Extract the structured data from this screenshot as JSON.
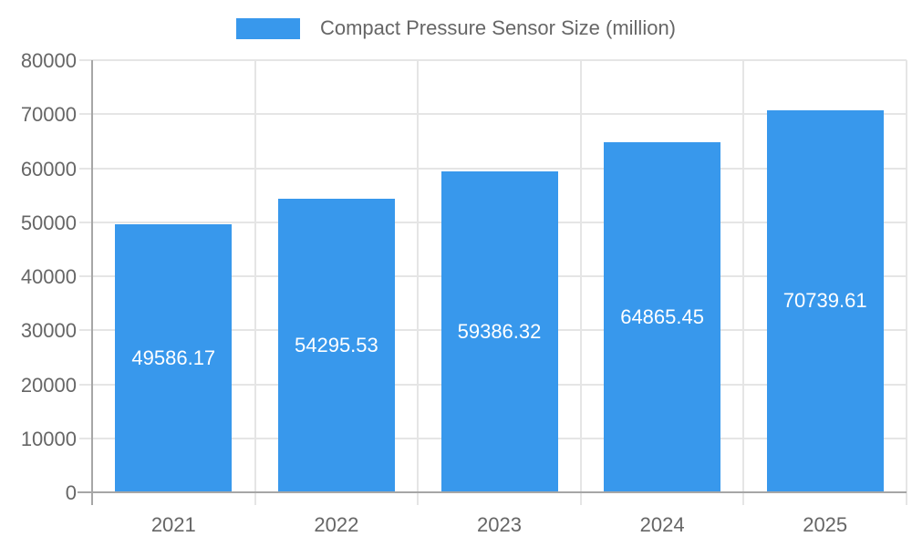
{
  "chart_data": {
    "type": "bar",
    "title": "Compact Pressure Sensor Size (million)",
    "categories": [
      "2021",
      "2022",
      "2023",
      "2024",
      "2025"
    ],
    "values": [
      49586.17,
      54295.53,
      59386.32,
      64865.45,
      70739.61
    ],
    "value_labels": [
      "49586.17",
      "54295.53",
      "59386.32",
      "64865.45",
      "70739.61"
    ],
    "xlabel": "",
    "ylabel": "",
    "ylim": [
      0,
      80000
    ],
    "y_tick_step": 10000,
    "y_tick_labels": [
      "0",
      "10000",
      "20000",
      "30000",
      "40000",
      "50000",
      "60000",
      "70000",
      "80000"
    ],
    "grid": true,
    "legend_position": "top",
    "bar_color": "#3898EC",
    "gridline_color": "#E5E5E5",
    "axis_line_color": "#A6A6A6",
    "text_color": "#666666",
    "bar_label_color": "#FFFFFF"
  }
}
